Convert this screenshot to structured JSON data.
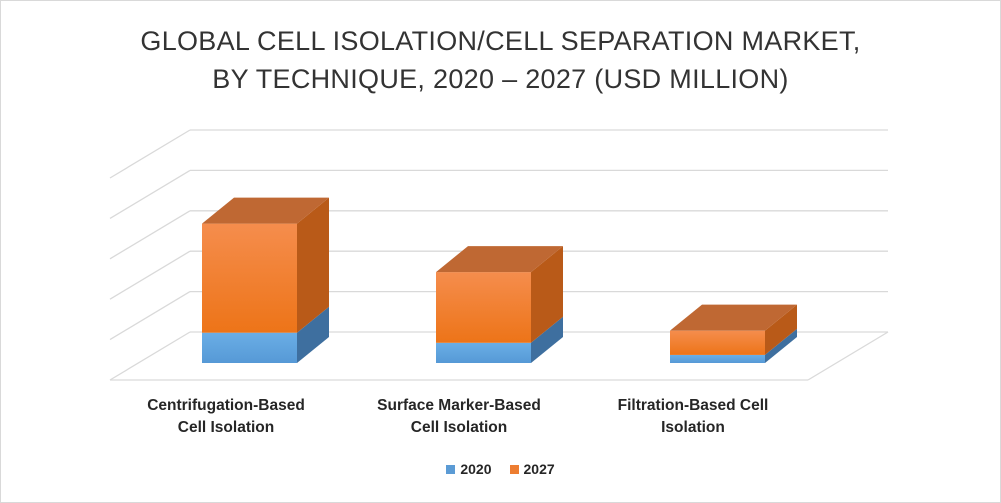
{
  "chart_data": {
    "type": "bar",
    "stacked": true,
    "three_d": true,
    "title": "GLOBAL CELL ISOLATION/CELL SEPARATION MARKET, BY TECHNIQUE, 2020 – 2027 (USD MILLION)",
    "title_lines": [
      "GLOBAL CELL ISOLATION/CELL SEPARATION MARKET,",
      "BY TECHNIQUE, 2020 – 2027 (USD MILLION)"
    ],
    "categories": [
      "Centrifugation-Based Cell Isolation",
      "Surface Marker-Based Cell Isolation",
      "Filtration-Based Cell Isolation"
    ],
    "category_labels": [
      "Centrifugation-Based\nCell Isolation",
      "Surface Marker-Based\nCell Isolation",
      "Filtration-Based Cell\nIsolation"
    ],
    "series": [
      {
        "name": "2020",
        "values": [
          0.75,
          0.5,
          0.2
        ],
        "color": "#5b9bd5"
      },
      {
        "name": "2027",
        "values": [
          2.7,
          1.75,
          0.6
        ],
        "color": "#ed7d31"
      }
    ],
    "ylim": [
      0,
      5
    ],
    "gridlines": 5,
    "y_tick_labels_shown": false,
    "legend_position": "bottom",
    "grid": true
  },
  "colors": {
    "2020": "#5b9bd5",
    "2027": "#ed7d31",
    "grid": "#d9d9d9"
  }
}
